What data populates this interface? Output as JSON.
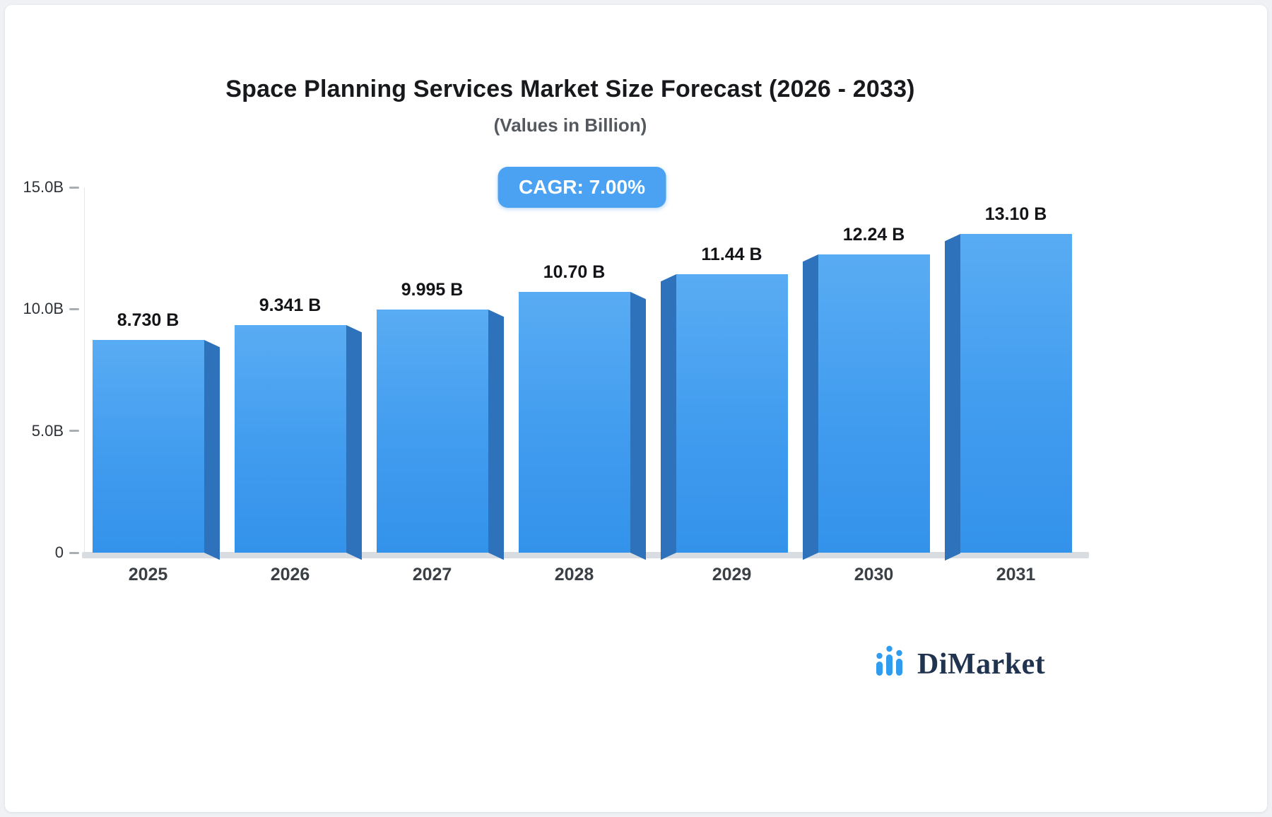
{
  "header": {
    "title": "Space Planning Services Market Size Forecast (2026 - 2033)",
    "subtitle": "(Values in Billion)"
  },
  "badge": {
    "label": "CAGR: 7.00%",
    "color": "#4ba2f3"
  },
  "chart_data": {
    "type": "bar",
    "title": "Space Planning Services Market Size Forecast (2026 - 2033)",
    "subtitle": "(Values in Billion)",
    "categories": [
      "2025",
      "2026",
      "2027",
      "2028",
      "2029",
      "2030",
      "2031"
    ],
    "values": [
      8.73,
      9.341,
      9.995,
      10.7,
      11.44,
      12.24,
      13.1
    ],
    "value_labels": [
      "8.730 B",
      "9.341 B",
      "9.995 B",
      "10.70 B",
      "11.44 B",
      "12.24 B",
      "13.10 B"
    ],
    "ylim": [
      0,
      15
    ],
    "y_ticks": [
      "15.0B",
      "10.0B",
      "5.0B",
      "0"
    ],
    "y_tick_values": [
      15,
      10,
      5,
      0
    ],
    "grid": false,
    "legend": false,
    "colors": {
      "bar_top": "#59acf3",
      "bar_bottom": "#3392ea",
      "bar_side": "#2d72ba",
      "baseline": "#d9dde2",
      "badge": "#4ba2f3",
      "brand_icon": "#2f9cf0",
      "brand_text": "#20334f"
    }
  },
  "footer": {
    "brand": "DiMarket"
  }
}
